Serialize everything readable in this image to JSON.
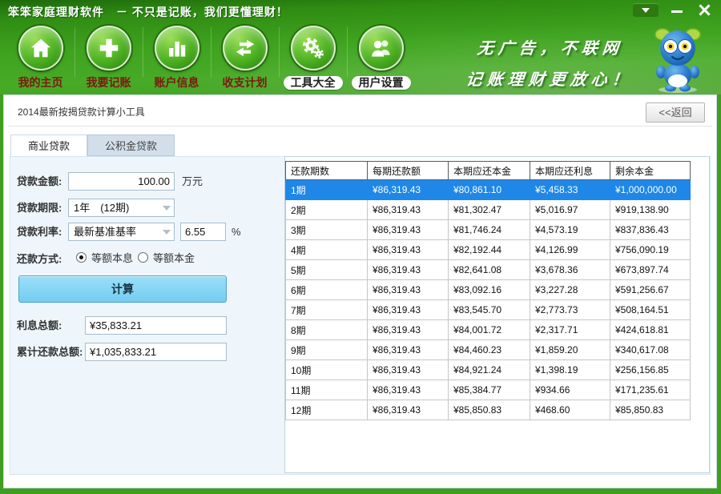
{
  "titlebar": {
    "title": "笨笨家庭理财软件　－ 不只是记账，我们更懂理财！"
  },
  "toolbar": {
    "items": [
      {
        "id": "home",
        "icon": "home-icon",
        "label": "我的主页",
        "pill": false
      },
      {
        "id": "add-record",
        "icon": "plus-icon",
        "label": "我要记账",
        "pill": false
      },
      {
        "id": "account-info",
        "icon": "bar-chart-icon",
        "label": "账户信息",
        "pill": false
      },
      {
        "id": "budget-plan",
        "icon": "transfer-arrows-icon",
        "label": "收支计划",
        "pill": false
      },
      {
        "id": "tools",
        "icon": "gears-icon",
        "label": "工具大全",
        "pill": true
      },
      {
        "id": "user-settings",
        "icon": "users-icon",
        "label": "用户设置",
        "pill": true
      }
    ],
    "slogan_line1": "无广告，不联网",
    "slogan_line2": "记账理财更放心！"
  },
  "page": {
    "title": "2014最新按揭贷款计算小工具",
    "back_button": "<<返回"
  },
  "tabs": [
    {
      "label": "商业贷款",
      "active": true
    },
    {
      "label": "公积金贷款",
      "active": false
    }
  ],
  "form": {
    "amount_label": "贷款金额:",
    "amount_value": "100.00",
    "amount_unit": "万元",
    "term_label": "贷款期限:",
    "term_value": "1年　(12期)",
    "rate_label": "贷款利率:",
    "rate_select_value": "最新基准基率",
    "rate_value": "6.55",
    "rate_unit": "%",
    "method_label": "还款方式:",
    "method_options": [
      {
        "label": "等额本息",
        "selected": true
      },
      {
        "label": "等额本金",
        "selected": false
      }
    ],
    "calc_button": "计算",
    "interest_label": "利息总额:",
    "interest_value": "¥35,833.21",
    "total_label": "累计还款总额:",
    "total_value": "¥1,035,833.21"
  },
  "table": {
    "headers": [
      "还款期数",
      "每期还款额",
      "本期应还本金",
      "本期应还利息",
      "剩余本金"
    ],
    "selected_row": 0,
    "rows": [
      [
        "1期",
        "¥86,319.43",
        "¥80,861.10",
        "¥5,458.33",
        "¥1,000,000.00"
      ],
      [
        "2期",
        "¥86,319.43",
        "¥81,302.47",
        "¥5,016.97",
        "¥919,138.90"
      ],
      [
        "3期",
        "¥86,319.43",
        "¥81,746.24",
        "¥4,573.19",
        "¥837,836.43"
      ],
      [
        "4期",
        "¥86,319.43",
        "¥82,192.44",
        "¥4,126.99",
        "¥756,090.19"
      ],
      [
        "5期",
        "¥86,319.43",
        "¥82,641.08",
        "¥3,678.36",
        "¥673,897.74"
      ],
      [
        "6期",
        "¥86,319.43",
        "¥83,092.16",
        "¥3,227.28",
        "¥591,256.67"
      ],
      [
        "7期",
        "¥86,319.43",
        "¥83,545.70",
        "¥2,773.73",
        "¥508,164.51"
      ],
      [
        "8期",
        "¥86,319.43",
        "¥84,001.72",
        "¥2,317.71",
        "¥424,618.81"
      ],
      [
        "9期",
        "¥86,319.43",
        "¥84,460.23",
        "¥1,859.20",
        "¥340,617.08"
      ],
      [
        "10期",
        "¥86,319.43",
        "¥84,921.24",
        "¥1,398.19",
        "¥256,156.85"
      ],
      [
        "11期",
        "¥86,319.43",
        "¥85,384.77",
        "¥934.66",
        "¥171,235.61"
      ],
      [
        "12期",
        "¥86,319.43",
        "¥85,850.83",
        "¥468.60",
        "¥85,850.83"
      ]
    ]
  },
  "colors": {
    "header_green": "#3f9e20",
    "selected_row_blue": "#1f87e8",
    "calc_button_blue": "#7fd3f3",
    "toolbar_label_red": "#7a1b10"
  }
}
